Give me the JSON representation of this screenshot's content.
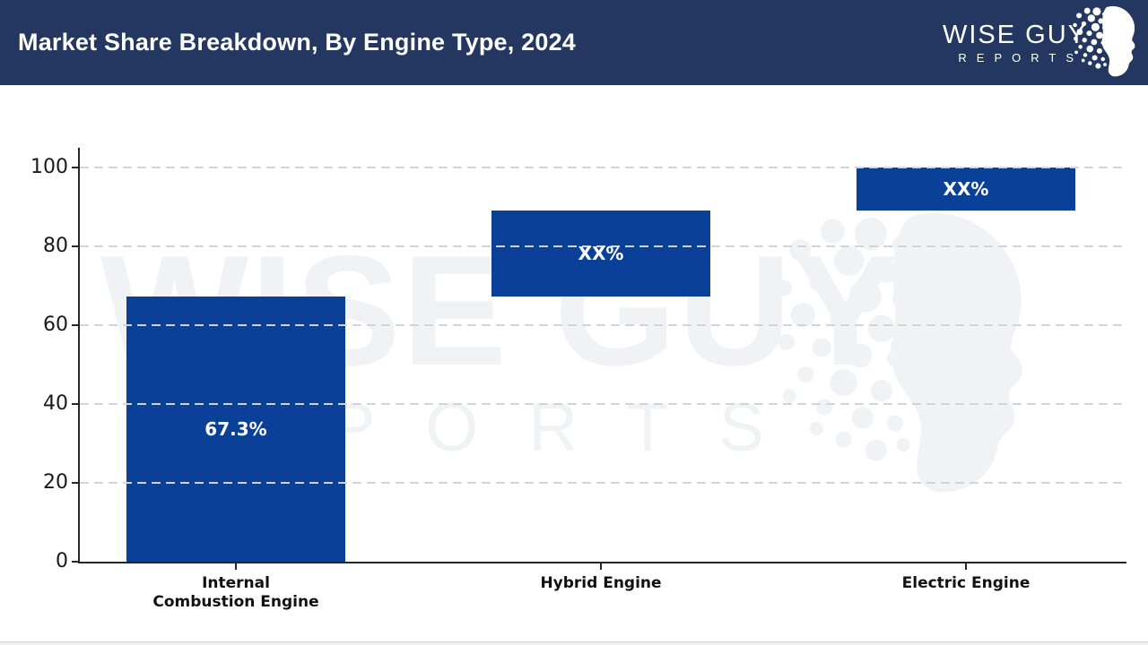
{
  "header": {
    "title": "Market Share Breakdown, By Engine Type, 2024",
    "bg_color": "#233761",
    "text_color": "#ffffff",
    "logo": {
      "line1": "WISE GUY",
      "line2": "REPORTS"
    }
  },
  "watermark": {
    "line1": "WISE GUY",
    "line2": "REPORTS"
  },
  "chart_data": {
    "type": "bar",
    "variant": "floating-waterfall",
    "title": "Market Share Breakdown, By Engine Type, 2024",
    "xlabel": "",
    "ylabel": "",
    "ylim": [
      0,
      100
    ],
    "yticks": [
      0,
      20,
      40,
      60,
      80,
      100
    ],
    "grid": "horizontal-dashed",
    "legend": "none",
    "categories": [
      {
        "lines": [
          "Internal",
          "Combustion Engine"
        ]
      },
      {
        "lines": [
          "Hybrid Engine"
        ]
      },
      {
        "lines": [
          "Electric Engine"
        ]
      }
    ],
    "segments": [
      {
        "category": "Internal Combustion Engine",
        "start": 0,
        "end": 67.3,
        "label": "67.3%"
      },
      {
        "category": "Hybrid Engine",
        "start": 67.3,
        "end": 89,
        "label": "XX%"
      },
      {
        "category": "Electric Engine",
        "start": 89,
        "end": 100,
        "label": "XX%"
      }
    ],
    "bar_color": "#0b4098",
    "bar_label_color": "#ffffff",
    "gridline_color": "#d4d4d4",
    "axis_color": "#262626",
    "tick_label_color": "#1a1a1a"
  }
}
